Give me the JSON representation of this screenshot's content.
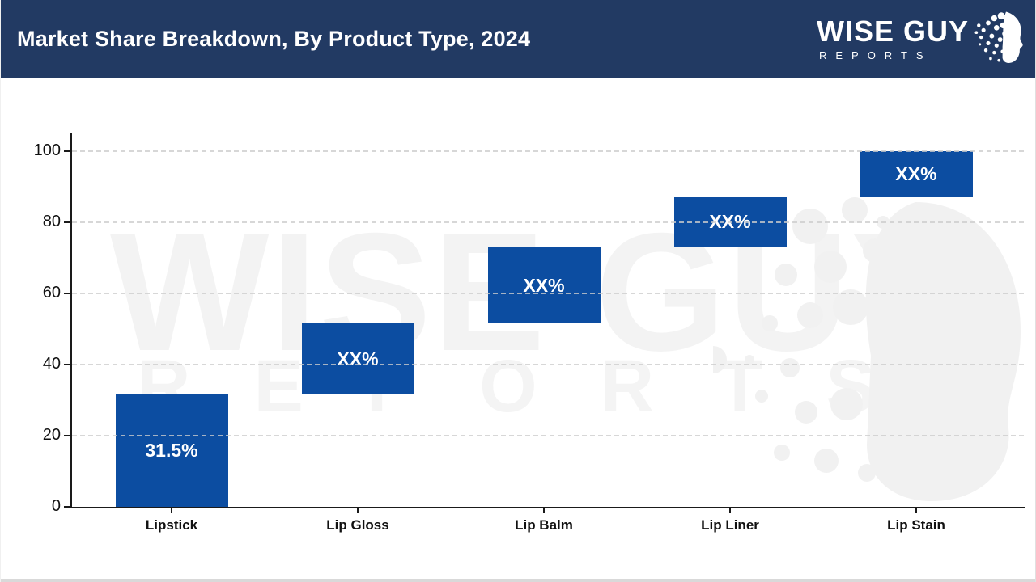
{
  "header": {
    "title": "Market Share Breakdown, By Product Type, 2024",
    "logo": {
      "line1": "WISE GUY",
      "line2": "REPORTS"
    }
  },
  "watermark": {
    "line1": "WISE GUY",
    "line2": "REPORTS"
  },
  "colors": {
    "header_bg": "#223a63",
    "bar": "#0c4da1",
    "grid": "#d9d9d9",
    "axis": "#1a1a1a",
    "bar_label_text": "#ffffff",
    "watermark": "#f3f3f3"
  },
  "chart_data": {
    "type": "bar",
    "subtype": "waterfall",
    "title": "Market Share Breakdown, By Product Type, 2024",
    "categories": [
      "Lipstick",
      "Lip Gloss",
      "Lip Balm",
      "Lip Liner",
      "Lip Stain"
    ],
    "segments": [
      {
        "category": "Lipstick",
        "start": 0,
        "end": 31.5,
        "label": "31.5%"
      },
      {
        "category": "Lip Gloss",
        "start": 31.5,
        "end": 51.5,
        "label": "XX%"
      },
      {
        "category": "Lip Balm",
        "start": 51.5,
        "end": 73,
        "label": "XX%"
      },
      {
        "category": "Lip Liner",
        "start": 73,
        "end": 87,
        "label": "XX%"
      },
      {
        "category": "Lip Stain",
        "start": 87,
        "end": 100,
        "label": "XX%"
      }
    ],
    "xlabel": "",
    "ylabel": "",
    "ylim": [
      0,
      100
    ],
    "yticks": [
      0,
      20,
      40,
      60,
      80,
      100
    ],
    "grid": "dashed-horizontal",
    "legend": "none"
  }
}
